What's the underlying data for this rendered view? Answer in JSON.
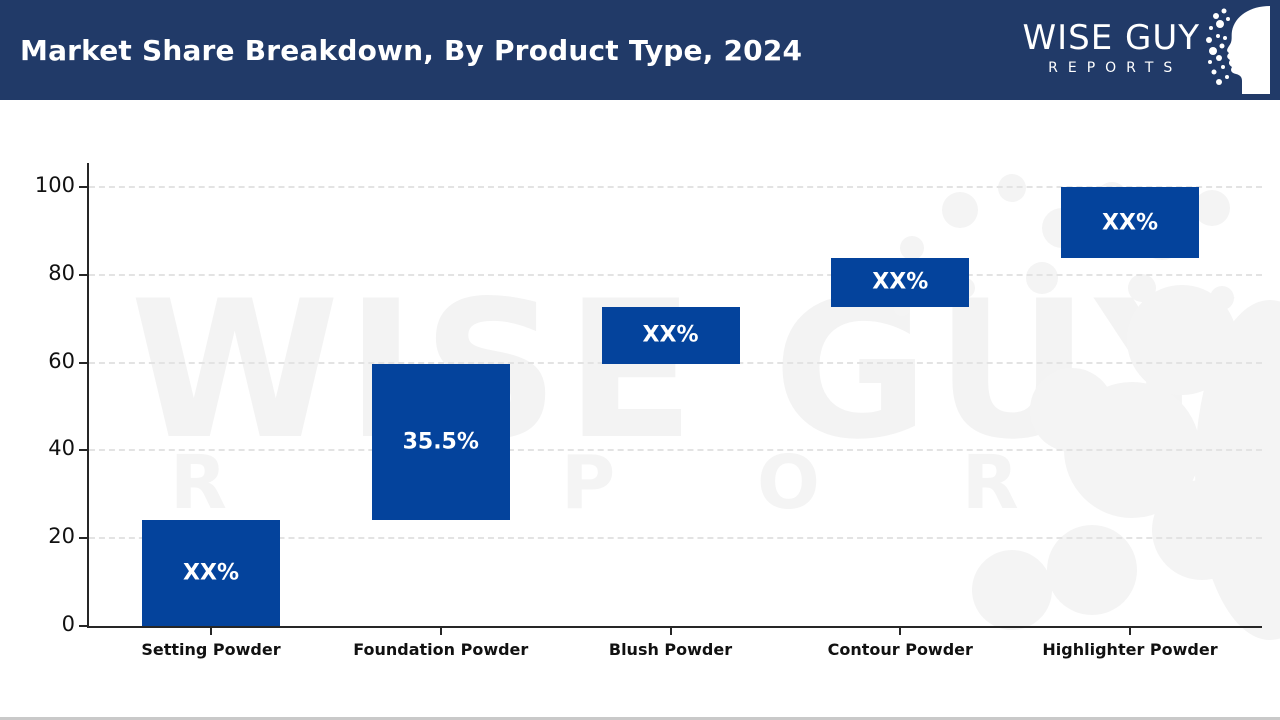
{
  "header": {
    "title": "Market Share Breakdown, By Product Type, 2024",
    "logo": {
      "line1": "WISE GUY",
      "line2": "REPORTS"
    }
  },
  "watermark": {
    "line1": "WISE GUY",
    "line2": "R E P O R T S"
  },
  "colors": {
    "header_bg": "#213a68",
    "bar": "#04439c",
    "bar_label": "#ffffff",
    "axis": "#262626",
    "tick_label": "#111111",
    "gridline": "#e3e3e3",
    "watermark": "#f3f3f3",
    "bottom_line": "#c9c9c9"
  },
  "chart_data": {
    "type": "bar",
    "subtype": "waterfall",
    "title": "Market Share Breakdown, By Product Type, 2024",
    "categories": [
      "Setting Powder",
      "Foundation Powder",
      "Blush Powder",
      "Contour Powder",
      "Highlighter Powder"
    ],
    "segments": [
      {
        "category": "Setting Powder",
        "start": 0,
        "end": 24.2,
        "label": "XX%"
      },
      {
        "category": "Foundation Powder",
        "start": 24.2,
        "end": 59.7,
        "label": "35.5%"
      },
      {
        "category": "Blush Powder",
        "start": 59.7,
        "end": 72.7,
        "label": "XX%"
      },
      {
        "category": "Contour Powder",
        "start": 72.7,
        "end": 83.8,
        "label": "XX%"
      },
      {
        "category": "Highlighter Powder",
        "start": 83.8,
        "end": 100,
        "label": "XX%"
      }
    ],
    "xlabel": "",
    "ylabel": "",
    "ylim": [
      0,
      100
    ],
    "yticks": [
      0,
      20,
      40,
      60,
      80,
      100
    ],
    "grid": true,
    "grid_style": "dashed",
    "legend": false,
    "bar_color": "#04439c",
    "value_label_color": "#ffffff"
  }
}
